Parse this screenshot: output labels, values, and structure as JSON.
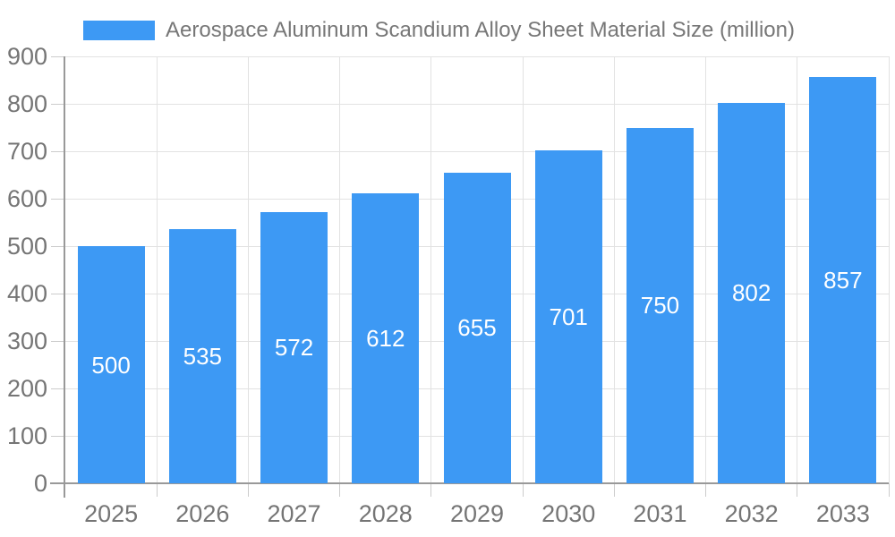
{
  "chart_data": {
    "type": "bar",
    "title": "",
    "series_label": "Aerospace Aluminum Scandium Alloy Sheet Material Size (million)",
    "categories": [
      "2025",
      "2026",
      "2027",
      "2028",
      "2029",
      "2030",
      "2031",
      "2032",
      "2033"
    ],
    "values": [
      500,
      535,
      572,
      612,
      655,
      701,
      750,
      802,
      857
    ],
    "yticks": [
      0,
      100,
      200,
      300,
      400,
      500,
      600,
      700,
      800,
      900
    ],
    "ylim": [
      0,
      900
    ],
    "ytick_interval": 100,
    "grid": true,
    "legend_position": "top",
    "colors": {
      "bar": "#3d99f4",
      "axis": "#999999",
      "grid": "#e2e2e2",
      "tick": "#cccccc",
      "axis_text": "#757575",
      "legend_text": "#777777",
      "bar_label_text": "#ffffff"
    }
  }
}
